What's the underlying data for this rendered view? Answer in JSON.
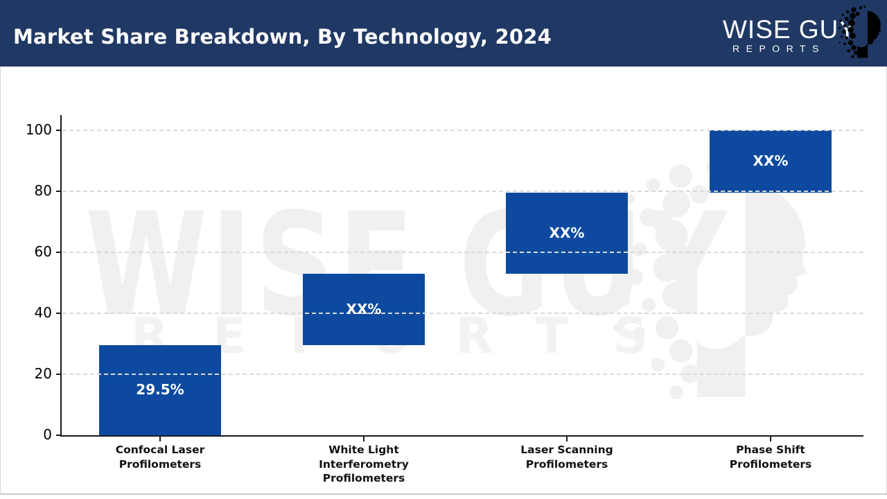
{
  "header": {
    "title": "Market Share Breakdown, By Technology, 2024",
    "brand": {
      "name": "WISE GUY",
      "reports": "REPORTS"
    },
    "bg_color": "#203864"
  },
  "watermark": {
    "brand": "WISE GUY",
    "reports": "REPORTS"
  },
  "chart_data": {
    "type": "bar",
    "subtype": "floating-segment-bars",
    "title": "Market Share Breakdown, By Technology, 2024",
    "categories": [
      "Confocal Laser\nProfilometers",
      "White Light\nInterferometry\nProfilometers",
      "Laser Scanning\nProfilometers",
      "Phase Shift\nProfilometers"
    ],
    "bars": [
      {
        "label": "29.5%",
        "start": 0,
        "end": 29.5
      },
      {
        "label": "XX%",
        "start": 29.5,
        "end": 53
      },
      {
        "label": "XX%",
        "start": 53,
        "end": 79.5
      },
      {
        "label": "XX%",
        "start": 79.5,
        "end": 100
      }
    ],
    "yticks": [
      0,
      20,
      40,
      60,
      80,
      100
    ],
    "ylim": [
      0,
      104.5
    ],
    "xlabel": "",
    "ylabel": "",
    "grid": "horizontal-dashed",
    "legend": "none",
    "bar_color": "#0d4a9f",
    "bar_label_color": "#ffffff",
    "axis_color": "#1a1a1a",
    "grid_color": "#d9d9d9"
  }
}
